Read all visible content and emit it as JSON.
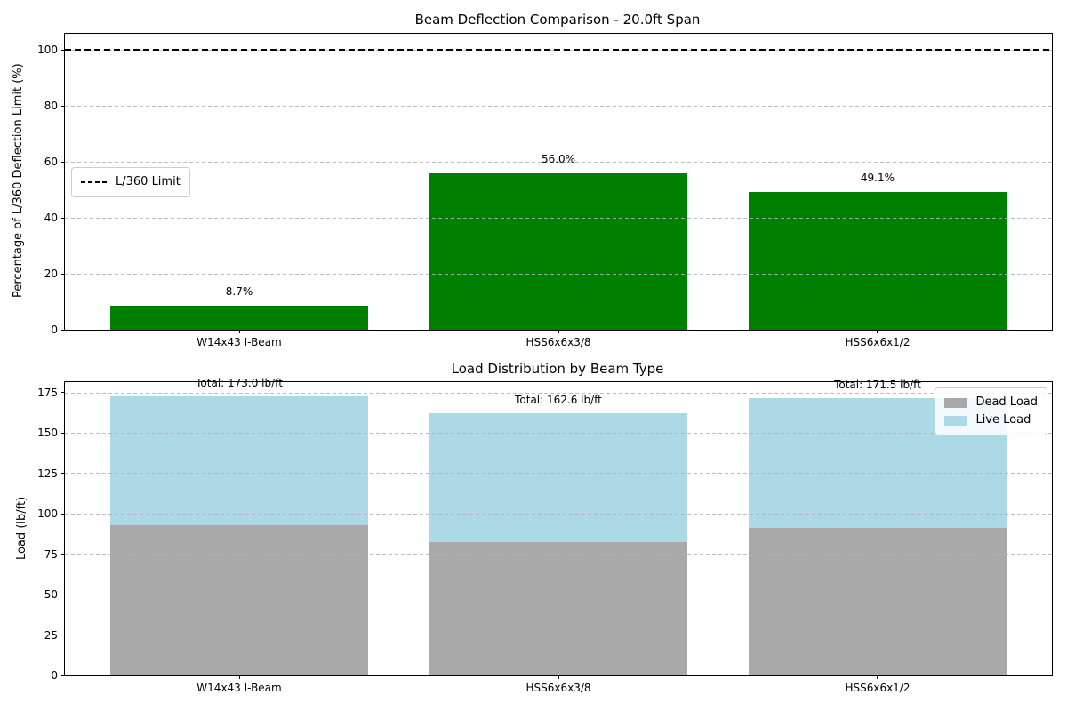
{
  "figure": {
    "background": "#ffffff"
  },
  "chart_data": [
    {
      "type": "bar",
      "title": "Beam Deflection Comparison - 20.0ft Span",
      "ylabel": "Percentage of L/360 Deflection Limit (%)",
      "categories": [
        "W14x43 I-Beam",
        "HSS6x6x3/8",
        "HSS6x6x1/2"
      ],
      "values": [
        8.7,
        56.0,
        49.1
      ],
      "bar_labels": [
        "8.7%",
        "56.0%",
        "49.1%"
      ],
      "bar_color": "#008000",
      "yticks": [
        0,
        20,
        40,
        60,
        80,
        100
      ],
      "ylim": [
        0,
        105.8
      ],
      "grid": true,
      "ref_line": {
        "value": 100,
        "label": "L/360 Limit",
        "color": "#000000",
        "style": "dashed"
      },
      "legend": {
        "position": "center-left",
        "items": [
          {
            "label": "L/360 Limit",
            "swatch": "dashed-line"
          }
        ]
      }
    },
    {
      "type": "bar",
      "stacked": true,
      "title": "Load Distribution by Beam Type",
      "ylabel": "Load (lb/ft)",
      "categories": [
        "W14x43 I-Beam",
        "HSS6x6x3/8",
        "HSS6x6x1/2"
      ],
      "series": [
        {
          "name": "Dead Load",
          "color": "#a9a9a9",
          "values": [
            93.0,
            82.6,
            91.5
          ]
        },
        {
          "name": "Live Load",
          "color": "#add8e6",
          "values": [
            80.0,
            80.0,
            80.0
          ]
        }
      ],
      "totals": [
        173.0,
        162.6,
        171.5
      ],
      "total_labels": [
        "Total: 173.0 lb/ft",
        "Total: 162.6 lb/ft",
        "Total: 171.5 lb/ft"
      ],
      "yticks": [
        0,
        25,
        50,
        75,
        100,
        125,
        150,
        175
      ],
      "ylim": [
        0,
        181.6
      ],
      "grid": true,
      "legend": {
        "position": "top-right",
        "items": [
          {
            "label": "Dead Load",
            "swatch": "#a9a9a9"
          },
          {
            "label": "Live Load",
            "swatch": "#add8e6"
          }
        ]
      }
    }
  ],
  "layout_colors": {
    "grid": "#b2b2b2",
    "frame": "#000000"
  }
}
